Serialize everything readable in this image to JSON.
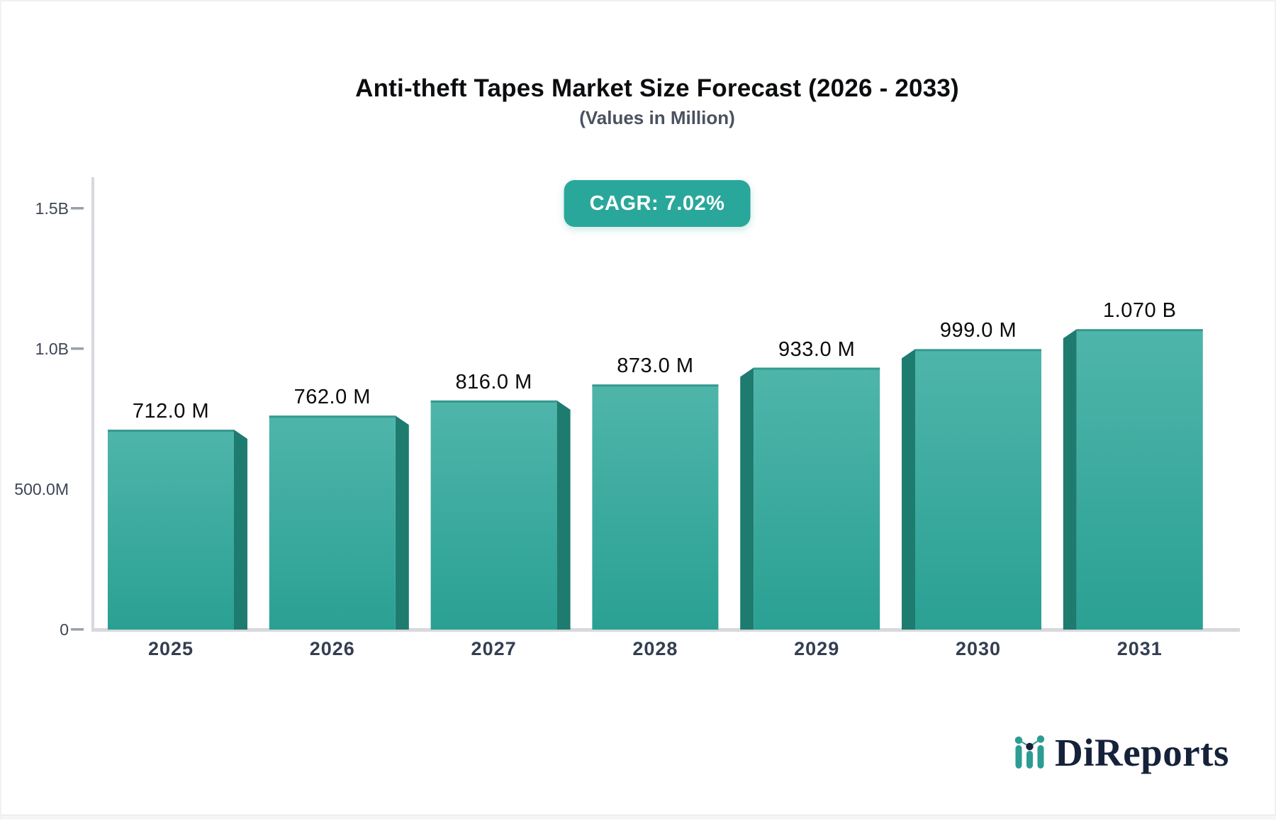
{
  "page": {
    "cagr_label": "CAGR: 7.02%",
    "brand": "DiReports"
  },
  "colors": {
    "accent_teal": "#2aa79b",
    "bar_face_top": "#4fb5ab",
    "bar_face_bottom": "#2aa093",
    "bar_side_dark": "#1e7b6f",
    "bar_top_edge": "#36998f",
    "axis_gray": "#d8d8dd",
    "tick_gray": "#9aa0ab",
    "axis_label": "#3d4655",
    "year_label": "#333e51",
    "value_label": "#0a0b0d",
    "logo_navy": "#15223a",
    "logo_teal": "#2d9c93"
  },
  "chart_data": {
    "type": "bar",
    "title": "Anti-theft Tapes Market Size Forecast (2026 - 2033)",
    "subtitle": "(Values in Million)",
    "cagr": "7.02%",
    "categories": [
      "2025",
      "2026",
      "2027",
      "2028",
      "2029",
      "2030",
      "2031"
    ],
    "values": [
      712,
      762,
      816,
      873,
      933,
      999,
      1070
    ],
    "value_labels": [
      "712.0 M",
      "762.0 M",
      "816.0 M",
      "873.0 M",
      "933.0 M",
      "999.0 M",
      "1.070 B"
    ],
    "unit": "Million",
    "ylim": [
      0,
      1500
    ],
    "y_ticks": [
      {
        "label": "1.5B",
        "value": 1500,
        "tick": true
      },
      {
        "label": "1.0B",
        "value": 1000,
        "tick": true
      },
      {
        "label": "500.0M",
        "value": 500,
        "tick": false
      },
      {
        "label": "0",
        "value": 0,
        "tick": true
      }
    ],
    "grid": false,
    "legend": false,
    "effect": "3d-perspective-center"
  }
}
